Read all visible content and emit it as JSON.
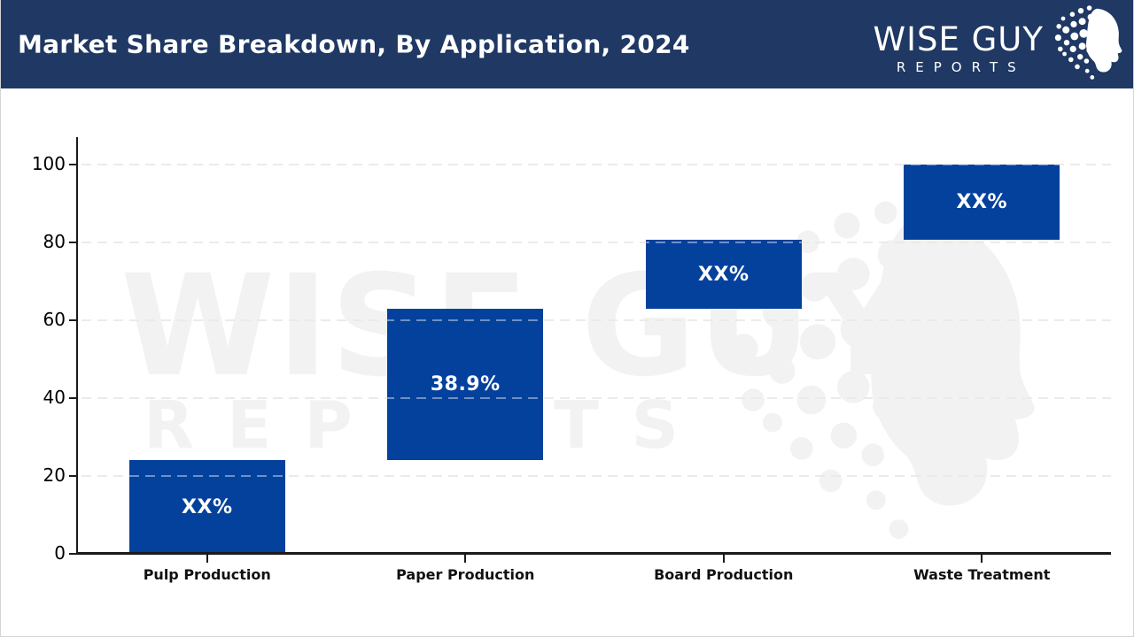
{
  "header": {
    "title": "Market Share Breakdown, By Application, 2024",
    "brand": {
      "line1": "WISE GUY",
      "line2": "REPORTS"
    }
  },
  "watermark": {
    "line1": "WISE GUY",
    "line2": "REPORTS"
  },
  "chart_data": {
    "type": "bar",
    "subtype": "floating-segment-waterfall",
    "title": "Market Share Breakdown, By Application, 2024",
    "categories": [
      "Pulp Production",
      "Paper Production",
      "Board Production",
      "Waste Treatment"
    ],
    "segments": [
      {
        "category": "Pulp Production",
        "start": 0,
        "end": 24,
        "height": 24,
        "label": "XX%"
      },
      {
        "category": "Paper Production",
        "start": 24,
        "end": 62.9,
        "height": 38.9,
        "label": "38.9%"
      },
      {
        "category": "Board Production",
        "start": 62.9,
        "end": 80.7,
        "height": 17.8,
        "label": "XX%"
      },
      {
        "category": "Waste Treatment",
        "start": 80.7,
        "end": 100,
        "height": 19.3,
        "label": "XX%"
      }
    ],
    "yticks": [
      0,
      20,
      40,
      60,
      80,
      100
    ],
    "ylim": [
      0,
      100
    ],
    "xlabel": "",
    "ylabel": "",
    "grid": "horizontal-dashed",
    "legend": "none",
    "bar_color": "#04419c",
    "colors": {
      "axis": "#1a1a1a",
      "gridline": "#dcdcdc",
      "value_label": "#ffffff",
      "header_bg": "#1f3864",
      "watermark": "#f2f2f2"
    }
  }
}
